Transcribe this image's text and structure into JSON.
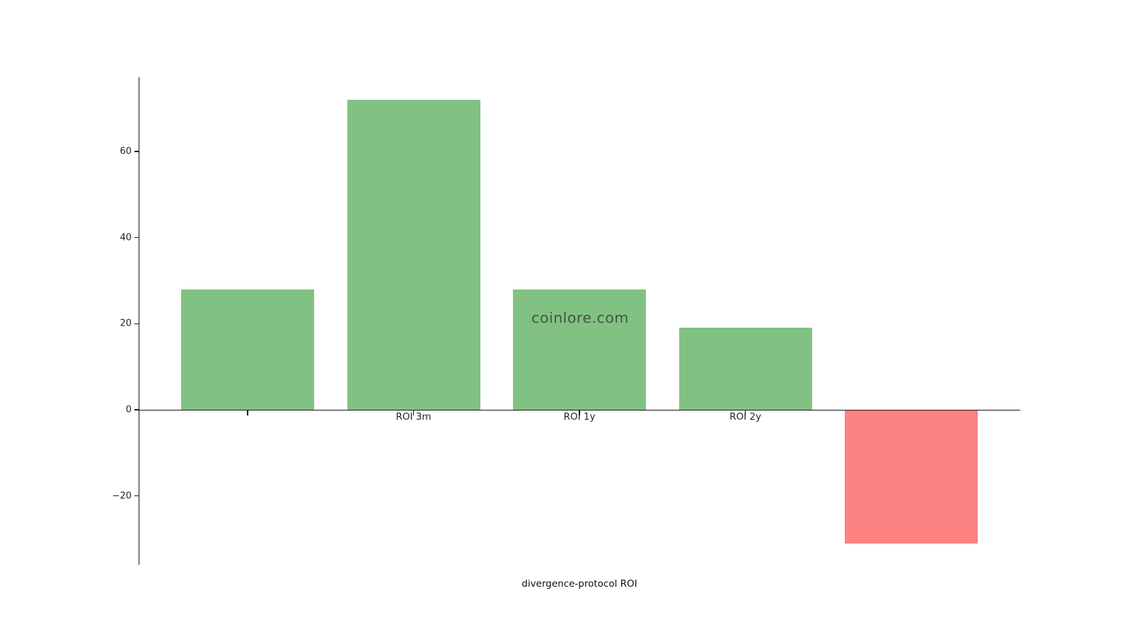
{
  "page": {
    "background": "#ffffff"
  },
  "watermark": {
    "text": "coinlore.com",
    "color": "#3f5644"
  },
  "chart_data": {
    "type": "bar",
    "categories": [
      "",
      "ROI 3m",
      "ROI 1y",
      "ROI 2y",
      ""
    ],
    "values": [
      28,
      72,
      28,
      19,
      -31
    ],
    "xticks_visible": [
      true,
      true,
      true,
      true,
      false
    ],
    "title": "",
    "xlabel": "divergence-protocol ROI",
    "ylabel": "",
    "yticks": [
      -20,
      0,
      20,
      40,
      60
    ],
    "ylim": [
      -36.15,
      77.15
    ],
    "grid": false,
    "legend": "none",
    "colors": {
      "positive": "#81c182",
      "negative": "#fd8282",
      "axis": "#1a1a1a",
      "tick_label": "#262626"
    }
  }
}
